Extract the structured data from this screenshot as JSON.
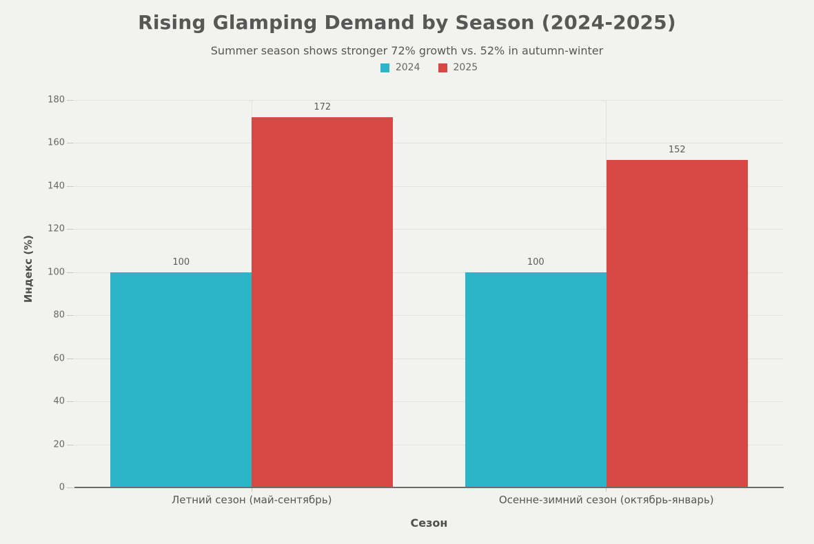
{
  "chart_data": {
    "type": "bar",
    "title": "Rising Glamping Demand by Season (2024-2025)",
    "subtitle": "Summer season shows stronger 72% growth vs. 52% in autumn-winter",
    "categories": [
      "Летний сезон (май-сентябрь)",
      "Осенне-зимний сезон (октябрь-январь)"
    ],
    "series": [
      {
        "name": "2024",
        "color": "#2cb5c8",
        "values": [
          100,
          100
        ]
      },
      {
        "name": "2025",
        "color": "#d74845",
        "values": [
          172,
          152
        ]
      }
    ],
    "xlabel": "Сезон",
    "ylabel": "Индекс (%)",
    "ylim": [
      0,
      180
    ],
    "yticks": [
      0,
      20,
      40,
      60,
      80,
      100,
      120,
      140,
      160,
      180
    ],
    "grid": true,
    "legend_position": "top-center",
    "value_labels": true
  },
  "colors": {
    "background": "#f2f2ee",
    "gridline": "#e2e2dc",
    "axis_line": "#6b6b6b",
    "title_text": "#575757",
    "tick_text": "#666666"
  }
}
